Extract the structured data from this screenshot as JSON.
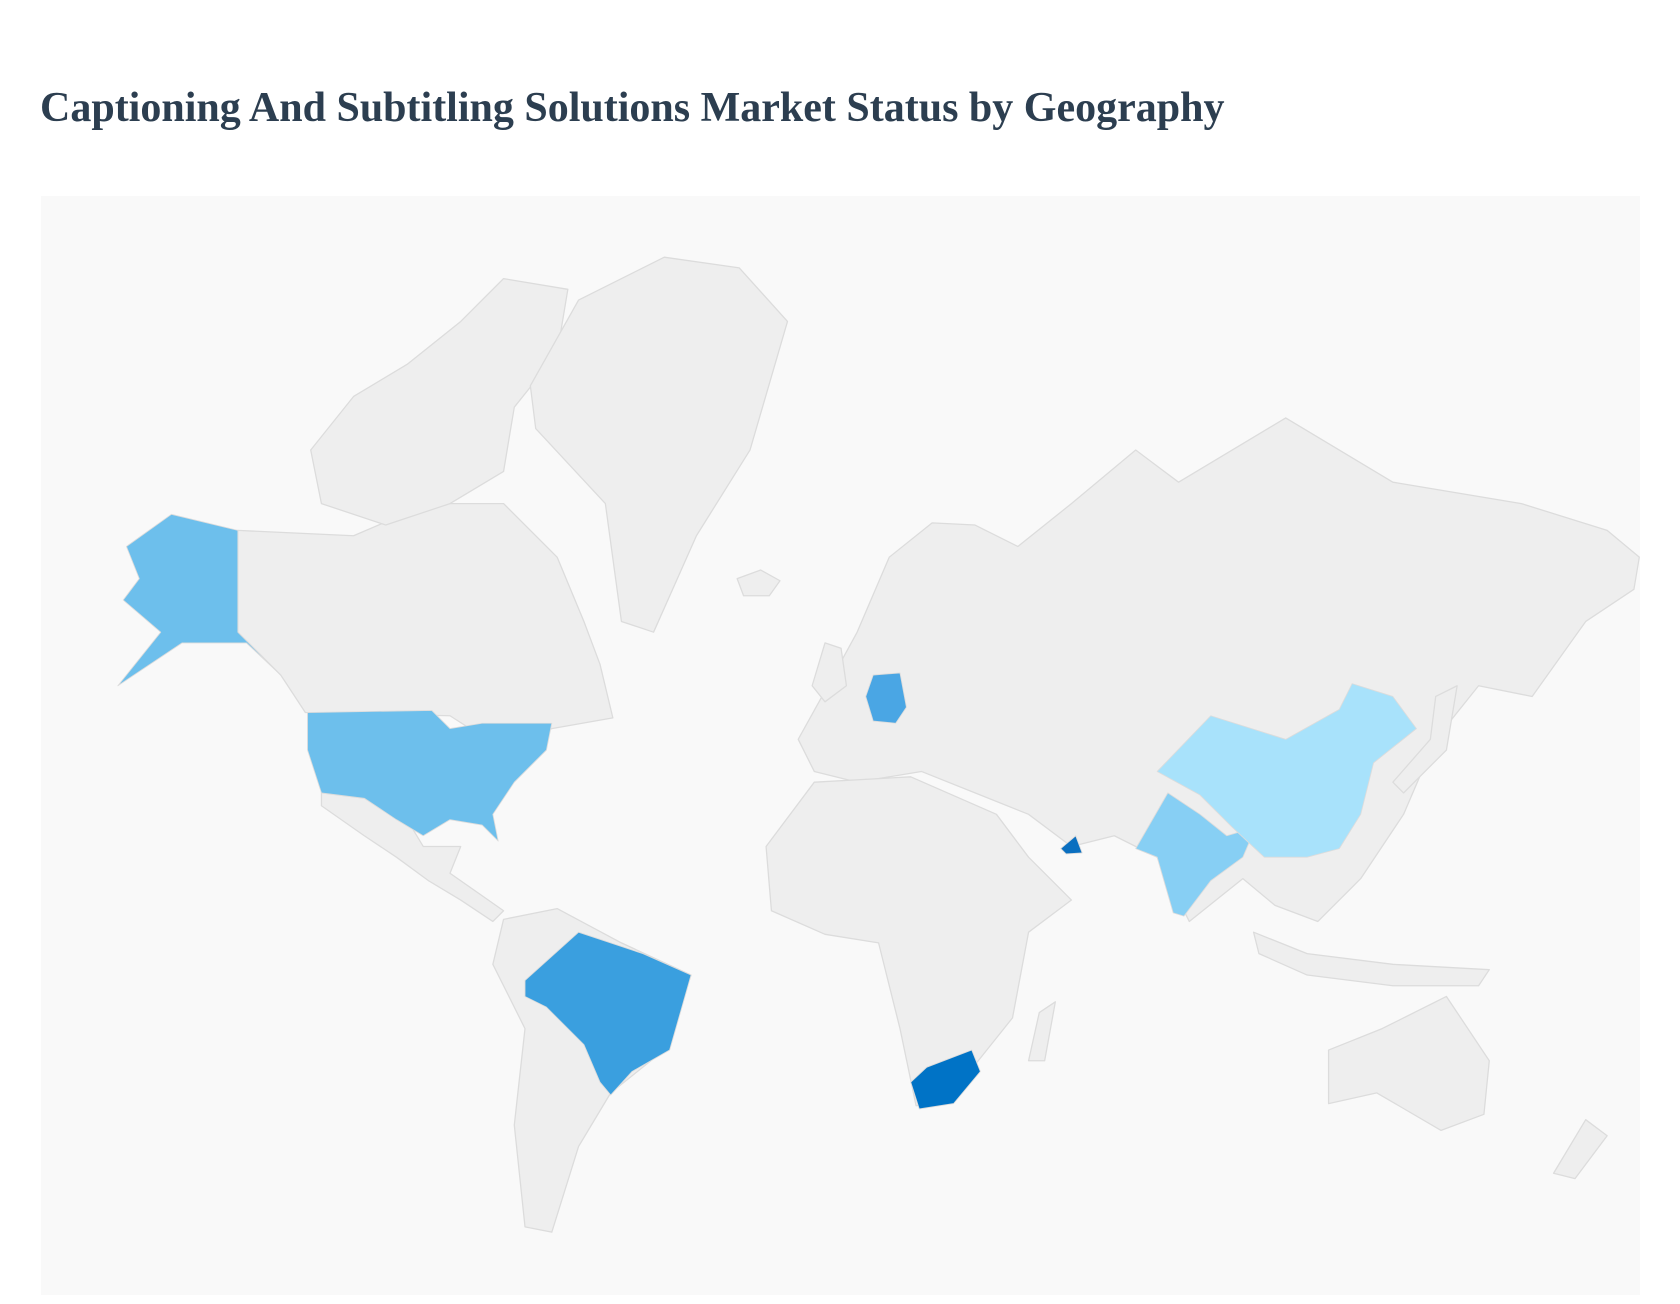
{
  "title": "Captioning And Subtitling Solutions Market Status by Geography",
  "map": {
    "type": "choropleth",
    "land_color": "#eeeeee",
    "border_color": "#dcdcdc",
    "background_color": "#f9f9f9",
    "highlighted_regions": [
      {
        "country": "United States",
        "color": "#6dbfec"
      },
      {
        "country": "Brazil",
        "color": "#3a9fdf"
      },
      {
        "country": "Germany",
        "color": "#4aa6e4"
      },
      {
        "country": "South Africa",
        "color": "#0073c6"
      },
      {
        "country": "United Arab Emirates",
        "color": "#0a6fc0"
      },
      {
        "country": "India",
        "color": "#87cff4"
      },
      {
        "country": "China",
        "color": "#a8e2fb"
      }
    ]
  }
}
